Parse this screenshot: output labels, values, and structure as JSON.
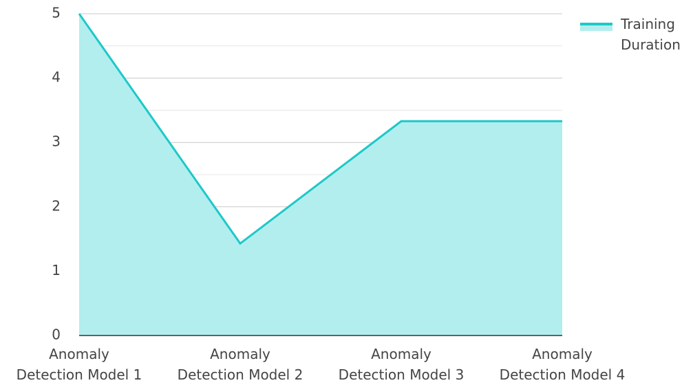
{
  "chart_data": {
    "type": "area",
    "categories": [
      "Anomaly\nDetection Model 1",
      "Anomaly\nDetection Model 2",
      "Anomaly\nDetection Model 3",
      "Anomaly\nDetection Model 4"
    ],
    "series": [
      {
        "name": "Training Duration",
        "color": "#1ec8c8",
        "fill": "#b2eeee",
        "values": [
          5,
          1.43,
          3.33,
          3.33
        ]
      }
    ],
    "ylim": [
      0,
      5
    ],
    "yticks": [
      0,
      1,
      2,
      3,
      4,
      5
    ],
    "minor_yticks": [
      0.5,
      1.5,
      2.5,
      3.5,
      4.5
    ],
    "grid": true,
    "legend": "top-right"
  }
}
